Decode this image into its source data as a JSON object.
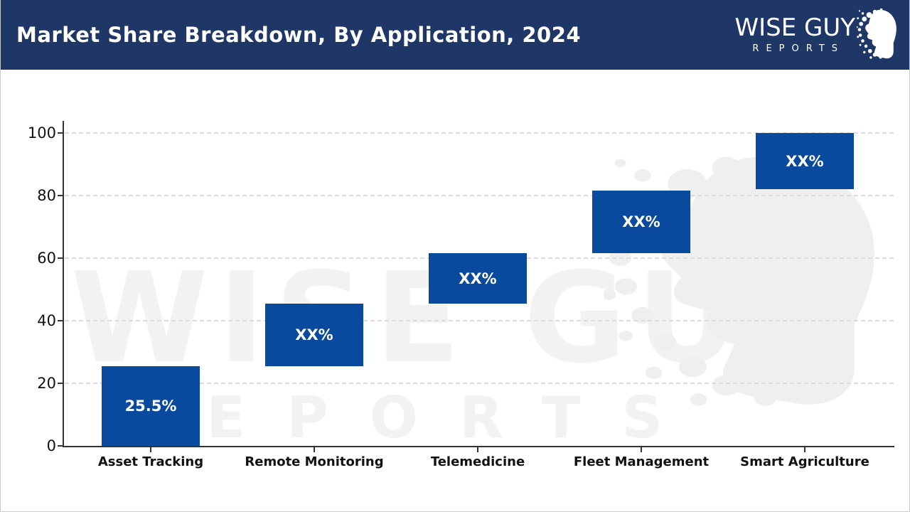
{
  "header": {
    "title": "Market Share Breakdown, By Application, 2024",
    "logo": {
      "line1": "WISE GUY",
      "line2": "REPORTS",
      "icon": "dotted-face-profile-icon"
    }
  },
  "watermark": {
    "line1": "WISE GUY",
    "line2": "REPORTS"
  },
  "colors": {
    "header_bg": "#1f3766",
    "bar": "#0a4a9e",
    "grid": "#dcdcdc",
    "axis": "#333333",
    "title_text": "#ffffff",
    "bar_label_text": "#ffffff",
    "watermark": "#f2f2f2"
  },
  "chart_data": {
    "type": "bar",
    "variant": "waterfall",
    "title": "Market Share Breakdown, By Application, 2024",
    "categories": [
      "Asset Tracking",
      "Remote Monitoring",
      "Telemedicine",
      "Fleet Management",
      "Smart Agriculture"
    ],
    "series": [
      {
        "name": "Market Share (%)",
        "segments": [
          {
            "from": 0,
            "to": 25.5,
            "label": "25.5%"
          },
          {
            "from": 25.5,
            "to": 45.5,
            "label": "XX%"
          },
          {
            "from": 45.5,
            "to": 61.5,
            "label": "XX%"
          },
          {
            "from": 61.5,
            "to": 81.5,
            "label": "XX%"
          },
          {
            "from": 82,
            "to": 100,
            "label": "XX%"
          }
        ]
      }
    ],
    "xlabel": "",
    "ylabel": "",
    "ylim": [
      0,
      100
    ],
    "yticks": [
      0,
      20,
      40,
      60,
      80,
      100
    ],
    "grid": "horizontal-dashed",
    "legend": false
  }
}
